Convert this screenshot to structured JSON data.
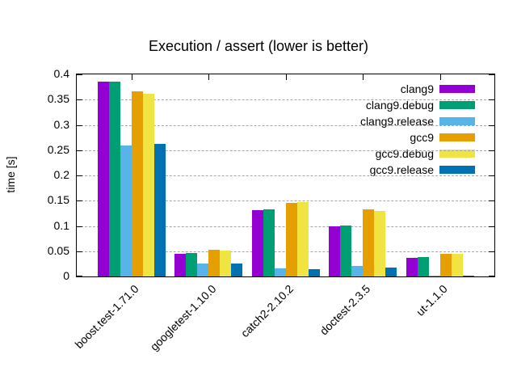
{
  "chart_data": {
    "type": "bar",
    "title": "Execution / assert (lower is better)",
    "ylabel": "time [s]",
    "xlabel": "",
    "ylim": [
      0,
      0.4
    ],
    "grid": true,
    "grid_style": "dashed-gray-horizontal",
    "legend_position": "top-right-inside",
    "background_color": "#ffffff",
    "frame_color": "#000000",
    "yticks": [
      {
        "v": 0,
        "label": "0"
      },
      {
        "v": 0.05,
        "label": "0.05"
      },
      {
        "v": 0.1,
        "label": "0.1"
      },
      {
        "v": 0.15,
        "label": "0.15"
      },
      {
        "v": 0.2,
        "label": "0.2"
      },
      {
        "v": 0.25,
        "label": "0.25"
      },
      {
        "v": 0.3,
        "label": "0.3"
      },
      {
        "v": 0.35,
        "label": "0.35"
      },
      {
        "v": 0.4,
        "label": "0.4"
      }
    ],
    "categories": [
      "boost.test-1.71.0",
      "googletest-1.10.0",
      "catch2-2.10.2",
      "doctest-2.3.5",
      "ut-1.1.0"
    ],
    "series": [
      {
        "name": "clang9",
        "color": "#9400d3",
        "values": [
          0.385,
          0.044,
          0.131,
          0.099,
          0.037
        ]
      },
      {
        "name": "clang9.debug",
        "color": "#009e73",
        "values": [
          0.386,
          0.046,
          0.132,
          0.101,
          0.039
        ]
      },
      {
        "name": "clang9.release",
        "color": "#56b4e9",
        "values": [
          0.259,
          0.026,
          0.016,
          0.021,
          0.002
        ]
      },
      {
        "name": "gcc9",
        "color": "#e69f00",
        "values": [
          0.367,
          0.052,
          0.146,
          0.132,
          0.045
        ]
      },
      {
        "name": "gcc9.debug",
        "color": "#f0e442",
        "values": [
          0.361,
          0.051,
          0.147,
          0.13,
          0.045
        ]
      },
      {
        "name": "gcc9.release",
        "color": "#0072b2",
        "values": [
          0.263,
          0.025,
          0.014,
          0.018,
          0.002
        ]
      }
    ]
  }
}
